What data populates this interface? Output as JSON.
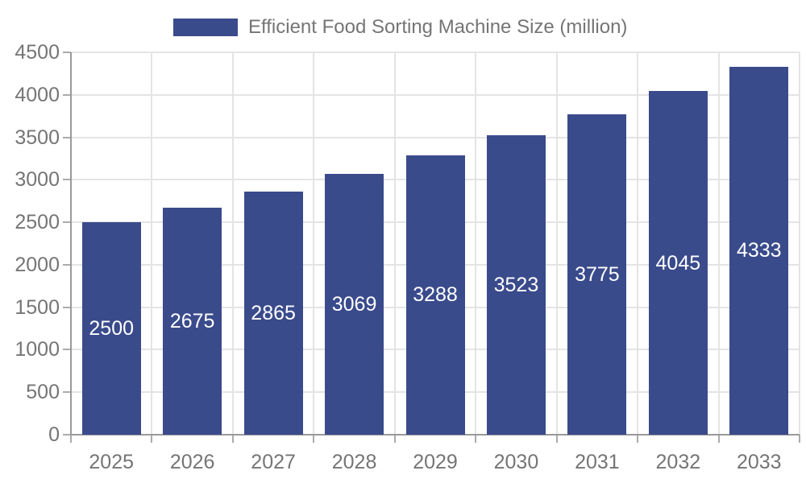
{
  "chart_data": {
    "type": "bar",
    "title": "Efficient Food Sorting Machine Size (million)",
    "legend_position": "top",
    "categories": [
      "2025",
      "2026",
      "2027",
      "2028",
      "2029",
      "2030",
      "2031",
      "2032",
      "2033"
    ],
    "series": [
      {
        "name": "Efficient Food Sorting Machine Size (million)",
        "values": [
          2500,
          2675,
          2865,
          3069,
          3288,
          3523,
          3775,
          4045,
          4333
        ]
      }
    ],
    "xlabel": "",
    "ylabel": "",
    "ylim": [
      0,
      4500
    ],
    "y_ticks": [
      0,
      500,
      1000,
      1500,
      2000,
      2500,
      3000,
      3500,
      4000,
      4500
    ],
    "grid": true,
    "bar_label_position": "inside-center",
    "colors": {
      "bar": "#3A4B8C",
      "bar_label": "#FFFFFF",
      "axis_text": "#757575",
      "legend_text": "#757575",
      "grid_line": "#E4E4E4",
      "axis_line": "#999999",
      "tick_line": "#ABABAB",
      "background": "#FFFFFF"
    }
  }
}
